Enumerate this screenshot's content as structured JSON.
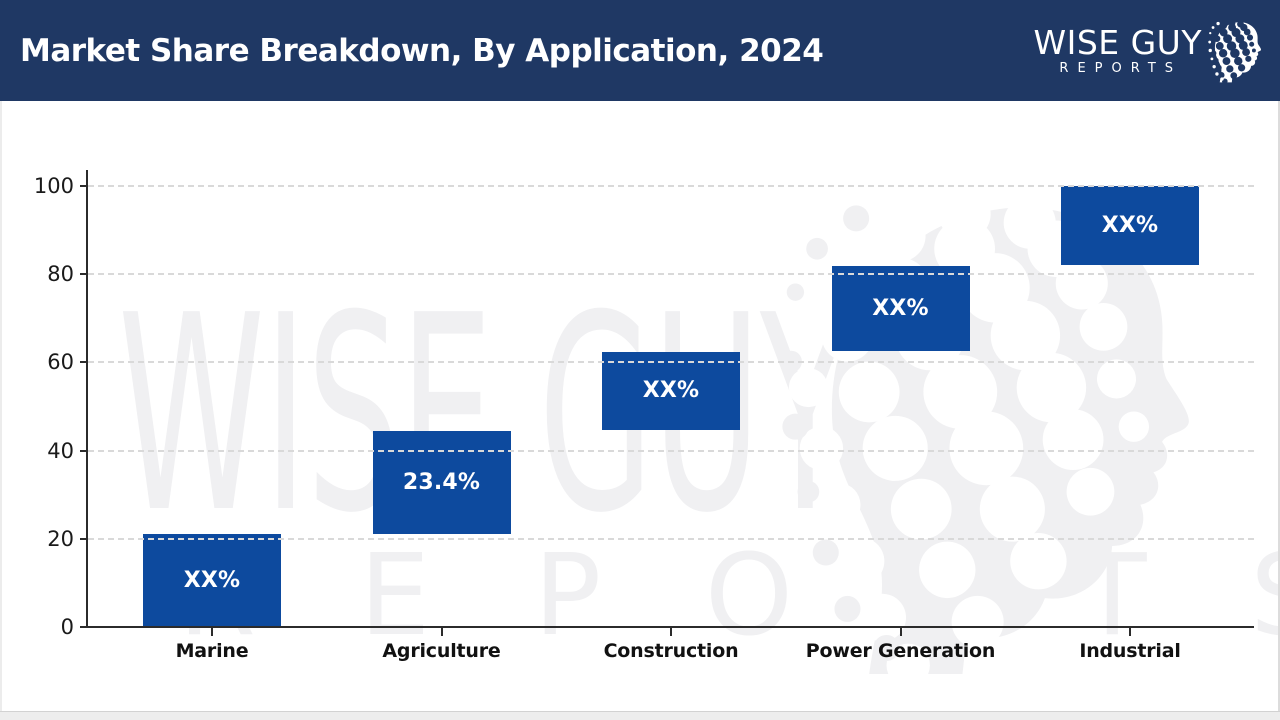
{
  "header": {
    "title": "Market Share Breakdown, By Application, 2024",
    "logo": {
      "primary": "WISE GUY",
      "secondary": "REPORTS"
    }
  },
  "watermark": {
    "primary": "WISE GUY",
    "secondary": "R E P O R T S"
  },
  "colors": {
    "header_bg": "#1f3864",
    "bar": "#0d4a9e",
    "gridline": "#d9d9d9",
    "watermark": "#f0f0f2",
    "bar_label": "#ffffff"
  },
  "chart_data": {
    "type": "bar",
    "subtype": "waterfall",
    "title": "Market Share Breakdown, By Application, 2024",
    "categories": [
      "Marine",
      "Agriculture",
      "Construction",
      "Power Generation",
      "Industrial"
    ],
    "bars": [
      {
        "category": "Marine",
        "start": 0,
        "end": 21,
        "label": "XX%"
      },
      {
        "category": "Agriculture",
        "start": 21.1,
        "end": 44.5,
        "label": "23.4%"
      },
      {
        "category": "Construction",
        "start": 44.7,
        "end": 62.4,
        "label": "XX%"
      },
      {
        "category": "Power Generation",
        "start": 62.5,
        "end": 81.9,
        "label": "XX%"
      },
      {
        "category": "Industrial",
        "start": 82,
        "end": 100,
        "label": "XX%"
      }
    ],
    "ylim": [
      0,
      100
    ],
    "yticks": [
      0,
      20,
      40,
      60,
      80,
      100
    ],
    "xlabel": "",
    "ylabel": "",
    "grid": "horizontal-dashed",
    "legend": "none"
  }
}
